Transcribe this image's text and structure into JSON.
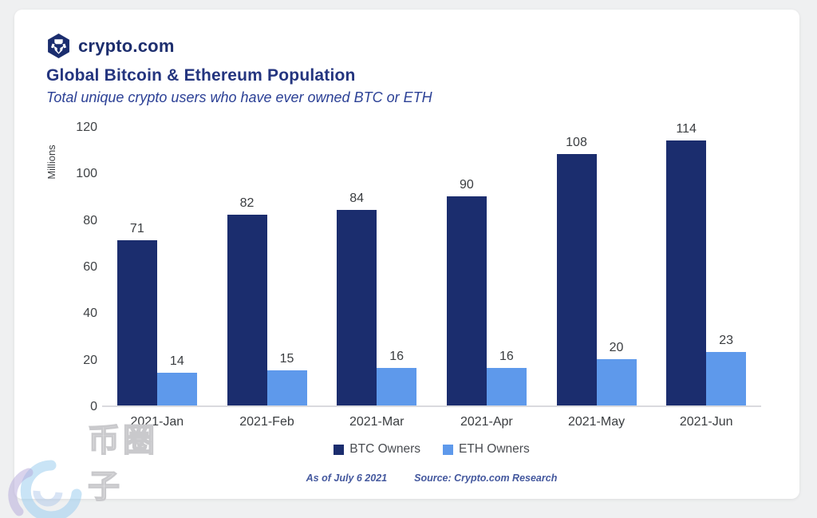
{
  "page": {
    "background_color": "#eff0f1",
    "card_color": "#ffffff"
  },
  "header": {
    "logo_text": "crypto.com",
    "logo_color": "#1d2e6e",
    "title": "Global Bitcoin & Ethereum Population",
    "subtitle": "Total unique crypto users who have ever owned BTC or ETH"
  },
  "chart_data": {
    "type": "bar",
    "title": "Global Bitcoin & Ethereum Population",
    "subtitle": "Total unique crypto users who have ever owned BTC or ETH",
    "xlabel": "",
    "ylabel": "Millions",
    "ylim": [
      0,
      120
    ],
    "yticks": [
      0,
      20,
      40,
      60,
      80,
      100,
      120
    ],
    "categories": [
      "2021-Jan",
      "2021-Feb",
      "2021-Mar",
      "2021-Apr",
      "2021-May",
      "2021-Jun"
    ],
    "series": [
      {
        "name": "BTC Owners",
        "color": "#1b2d6e",
        "values": [
          71,
          82,
          84,
          90,
          108,
          114
        ]
      },
      {
        "name": "ETH Owners",
        "color": "#5e99eb",
        "values": [
          14,
          15,
          16,
          16,
          20,
          23
        ]
      }
    ],
    "grid": false,
    "legend_position": "bottom",
    "value_labels": true
  },
  "footer": {
    "as_of": "As of July 6 2021",
    "source": "Source: Crypto.com Research"
  },
  "watermark": {
    "text": "币圈子"
  }
}
